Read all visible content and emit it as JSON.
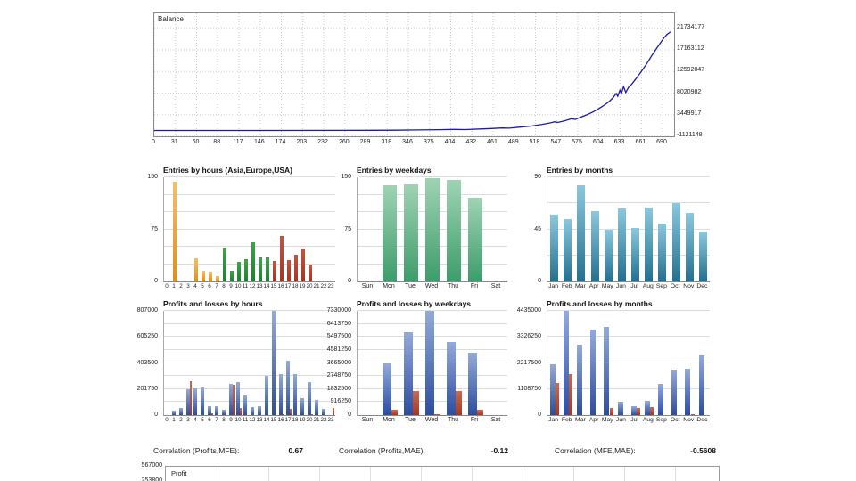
{
  "chart_data": [
    {
      "id": "balance",
      "type": "line",
      "title": "Balance",
      "line_color": "#1a1aae",
      "x_ticks": [
        0,
        31,
        60,
        88,
        117,
        146,
        174,
        203,
        232,
        260,
        289,
        318,
        346,
        375,
        404,
        432,
        461,
        489,
        518,
        547,
        575,
        604,
        633,
        661,
        690
      ],
      "y_ticks": [
        21734177,
        17163112,
        12592047,
        8020982,
        3449917,
        -1121148
      ],
      "xlim": [
        0,
        710
      ],
      "ylim": [
        -1121148,
        24900000
      ],
      "points": [
        [
          0,
          100000
        ],
        [
          150,
          105000
        ],
        [
          250,
          120000
        ],
        [
          300,
          140000
        ],
        [
          330,
          170000
        ],
        [
          360,
          215000
        ],
        [
          390,
          270000
        ],
        [
          410,
          330000
        ],
        [
          425,
          300000
        ],
        [
          445,
          420000
        ],
        [
          460,
          520000
        ],
        [
          475,
          640000
        ],
        [
          485,
          600000
        ],
        [
          500,
          820000
        ],
        [
          515,
          1050000
        ],
        [
          530,
          1400000
        ],
        [
          542,
          1750000
        ],
        [
          547,
          1950000
        ],
        [
          551,
          1800000
        ],
        [
          560,
          2150000
        ],
        [
          570,
          2600000
        ],
        [
          575,
          2450000
        ],
        [
          583,
          2950000
        ],
        [
          592,
          3500000
        ],
        [
          600,
          4100000
        ],
        [
          607,
          4700000
        ],
        [
          614,
          5400000
        ],
        [
          621,
          6200000
        ],
        [
          627,
          7100000
        ],
        [
          631,
          7950000
        ],
        [
          633,
          7350000
        ],
        [
          636,
          8650000
        ],
        [
          638,
          7950000
        ],
        [
          641,
          9400000
        ],
        [
          644,
          8150000
        ],
        [
          648,
          9300000
        ],
        [
          652,
          9900000
        ],
        [
          656,
          10700000
        ],
        [
          660,
          11500000
        ],
        [
          664,
          12300000
        ],
        [
          668,
          13200000
        ],
        [
          672,
          14100000
        ],
        [
          676,
          15100000
        ],
        [
          680,
          16100000
        ],
        [
          684,
          17000000
        ],
        [
          688,
          17900000
        ],
        [
          692,
          18800000
        ],
        [
          696,
          19700000
        ],
        [
          700,
          20400000
        ],
        [
          705,
          21000000
        ]
      ]
    },
    {
      "id": "entries-hours",
      "type": "bar",
      "title": "Entries by hours (Asia,Europe,USA)",
      "categories": [
        "0",
        "1",
        "2",
        "3",
        "4",
        "5",
        "6",
        "7",
        "8",
        "9",
        "10",
        "11",
        "12",
        "13",
        "14",
        "15",
        "16",
        "17",
        "18",
        "19",
        "20",
        "21",
        "22",
        "23"
      ],
      "values": [
        0,
        143,
        0,
        0,
        33,
        15,
        14,
        8,
        49,
        16,
        28,
        32,
        56,
        34,
        34,
        30,
        65,
        31,
        38,
        48,
        25,
        0,
        0,
        0
      ],
      "sessions": [
        "asia",
        "asia",
        "asia",
        "asia",
        "asia",
        "asia",
        "asia",
        "asia",
        "europe",
        "europe",
        "europe",
        "europe",
        "europe",
        "europe",
        "europe",
        "usa",
        "usa",
        "usa",
        "usa",
        "usa",
        "usa",
        "usa",
        "usa",
        "usa"
      ],
      "palette": {
        "asia": [
          "#f2c069",
          "#dd8f1c"
        ],
        "europe": [
          "#3fa24f",
          "#1f7f31"
        ],
        "usa": [
          "#c25640",
          "#a33423"
        ]
      },
      "y_ticks": [
        150,
        75,
        0
      ],
      "ylim": [
        0,
        150
      ],
      "grid_divisions": 6
    },
    {
      "id": "entries-weekdays",
      "type": "bar",
      "title": "Entries by weekdays",
      "categories": [
        "Sun",
        "Mon",
        "Tue",
        "Wed",
        "Thu",
        "Fri",
        "Sat"
      ],
      "values": [
        0,
        139,
        140,
        149,
        146,
        120,
        0
      ],
      "gradient": [
        "#9fd3b4",
        "#3e9c6b"
      ],
      "y_ticks": [
        150,
        75,
        0
      ],
      "ylim": [
        0,
        150
      ],
      "grid_divisions": 6
    },
    {
      "id": "entries-months",
      "type": "bar",
      "title": "Entries by months",
      "categories": [
        "Jan",
        "Feb",
        "Mar",
        "Apr",
        "May",
        "Jun",
        "Jul",
        "Aug",
        "Sep",
        "Oct",
        "Nov",
        "Dec"
      ],
      "values": [
        58,
        54,
        83,
        61,
        45,
        63,
        46,
        64,
        50,
        68,
        59,
        43
      ],
      "gradient": [
        "#8cc8de",
        "#22708f"
      ],
      "y_ticks": [
        90,
        45,
        0
      ],
      "ylim": [
        0,
        90
      ],
      "grid_divisions": 4
    },
    {
      "id": "pl-hours",
      "type": "bar",
      "title": "Profits and losses by hours",
      "categories": [
        "0",
        "1",
        "2",
        "3",
        "4",
        "5",
        "6",
        "7",
        "8",
        "9",
        "10",
        "11",
        "12",
        "13",
        "14",
        "15",
        "16",
        "17",
        "18",
        "19",
        "20",
        "21",
        "22",
        "23"
      ],
      "series": [
        {
          "name": "profit",
          "gradient": [
            "#93aad9",
            "#2c4da0"
          ],
          "values": [
            0,
            32000,
            58000,
            200000,
            205000,
            212000,
            67000,
            69000,
            44000,
            244000,
            258000,
            154000,
            62000,
            67000,
            304000,
            807000,
            320000,
            419000,
            315000,
            129000,
            253000,
            115000,
            51000,
            0
          ]
        },
        {
          "name": "loss",
          "gradient": [
            "#c96b51",
            "#aa3523"
          ],
          "values": [
            0,
            0,
            0,
            262000,
            0,
            0,
            16000,
            0,
            0,
            232000,
            53000,
            0,
            0,
            0,
            0,
            0,
            9000,
            51000,
            0,
            0,
            8000,
            0,
            0,
            55000
          ]
        }
      ],
      "y_ticks": [
        807000,
        605250,
        403500,
        201750,
        0
      ],
      "ylim": [
        0,
        807000
      ],
      "grid_divisions": 8
    },
    {
      "id": "pl-weekdays",
      "type": "bar",
      "title": "Profits and losses by weekdays",
      "categories": [
        "Sun",
        "Mon",
        "Tue",
        "Wed",
        "Thu",
        "Fri",
        "Sat"
      ],
      "series": [
        {
          "name": "profit",
          "gradient": [
            "#93aad9",
            "#2c4da0"
          ],
          "values": [
            0,
            3665000,
            5830000,
            7330000,
            5120000,
            4400000,
            0
          ]
        },
        {
          "name": "loss",
          "gradient": [
            "#c96b51",
            "#aa3523"
          ],
          "values": [
            0,
            355000,
            1670000,
            60000,
            1690000,
            355000,
            0
          ]
        }
      ],
      "y_ticks": [
        7330000,
        6413750,
        5497500,
        4581250,
        3665000,
        2748750,
        1832500,
        916250,
        0
      ],
      "ylim": [
        0,
        7330000
      ],
      "grid_divisions": 8
    },
    {
      "id": "pl-months",
      "type": "bar",
      "title": "Profits and losses by months",
      "categories": [
        "Jan",
        "Feb",
        "Mar",
        "Apr",
        "May",
        "Jun",
        "Jul",
        "Aug",
        "Sep",
        "Oct",
        "Nov",
        "Dec"
      ],
      "series": [
        {
          "name": "profit",
          "gradient": [
            "#93aad9",
            "#2c4da0"
          ],
          "values": [
            2170000,
            4435000,
            3000000,
            3630000,
            3750000,
            570000,
            366000,
            620000,
            1310000,
            1920000,
            1980000,
            2550000
          ]
        },
        {
          "name": "loss",
          "gradient": [
            "#c96b51",
            "#aa3523"
          ],
          "values": [
            1380000,
            1730000,
            0,
            0,
            300000,
            0,
            300000,
            340000,
            0,
            0,
            30000,
            0
          ]
        }
      ],
      "y_ticks": [
        4435000,
        3326250,
        2217500,
        1108750,
        0
      ],
      "ylim": [
        0,
        4435000
      ],
      "grid_divisions": 4
    },
    {
      "id": "profit-partial",
      "type": "line",
      "title": "Profit",
      "y_ticks": [
        "567000",
        "253800"
      ]
    }
  ],
  "correlations": [
    {
      "label": "Correlation (Profits,MFE):",
      "value": "0.67"
    },
    {
      "label": "Correlation (Profits,MAE):",
      "value": "-0.12"
    },
    {
      "label": "Correlation (MFE,MAE):",
      "value": "-0.5608"
    }
  ]
}
